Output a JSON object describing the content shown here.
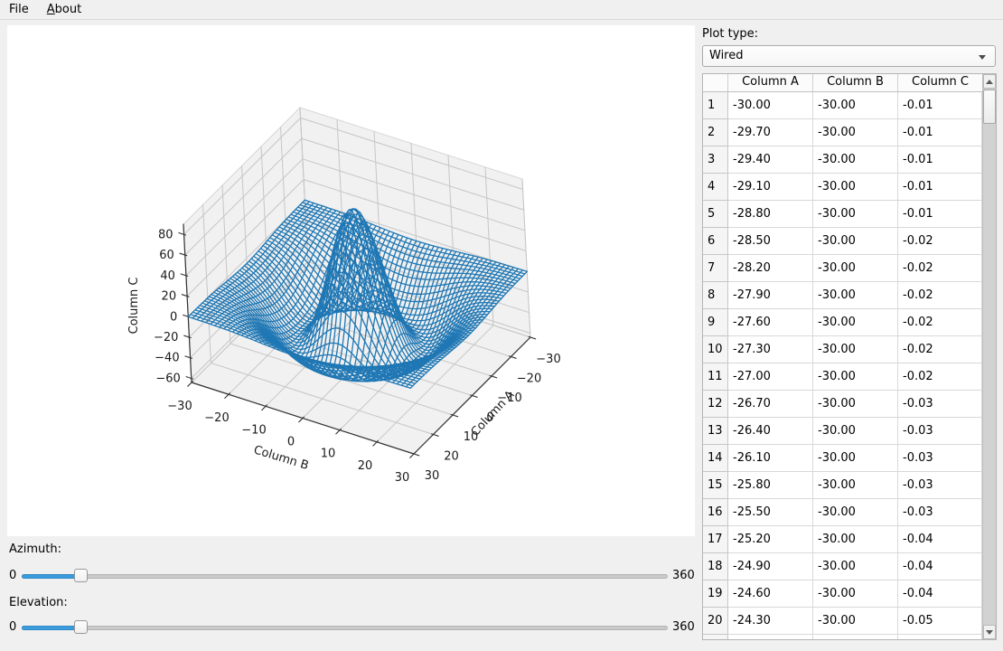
{
  "menu": {
    "items": [
      {
        "label": "File",
        "underline_index": -1
      },
      {
        "label": "About",
        "underline_index": 0
      }
    ]
  },
  "right_panel": {
    "plot_type_label": "Plot type:",
    "plot_type_value": "Wired"
  },
  "table": {
    "columns": [
      "Column A",
      "Column B",
      "Column C"
    ],
    "rows": [
      [
        "1",
        "-30.00",
        "-30.00",
        "-0.01"
      ],
      [
        "2",
        "-29.70",
        "-30.00",
        "-0.01"
      ],
      [
        "3",
        "-29.40",
        "-30.00",
        "-0.01"
      ],
      [
        "4",
        "-29.10",
        "-30.00",
        "-0.01"
      ],
      [
        "5",
        "-28.80",
        "-30.00",
        "-0.01"
      ],
      [
        "6",
        "-28.50",
        "-30.00",
        "-0.02"
      ],
      [
        "7",
        "-28.20",
        "-30.00",
        "-0.02"
      ],
      [
        "8",
        "-27.90",
        "-30.00",
        "-0.02"
      ],
      [
        "9",
        "-27.60",
        "-30.00",
        "-0.02"
      ],
      [
        "10",
        "-27.30",
        "-30.00",
        "-0.02"
      ],
      [
        "11",
        "-27.00",
        "-30.00",
        "-0.02"
      ],
      [
        "12",
        "-26.70",
        "-30.00",
        "-0.03"
      ],
      [
        "13",
        "-26.40",
        "-30.00",
        "-0.03"
      ],
      [
        "14",
        "-26.10",
        "-30.00",
        "-0.03"
      ],
      [
        "15",
        "-25.80",
        "-30.00",
        "-0.03"
      ],
      [
        "16",
        "-25.50",
        "-30.00",
        "-0.03"
      ],
      [
        "17",
        "-25.20",
        "-30.00",
        "-0.04"
      ],
      [
        "18",
        "-24.90",
        "-30.00",
        "-0.04"
      ],
      [
        "19",
        "-24.60",
        "-30.00",
        "-0.04"
      ],
      [
        "20",
        "-24.30",
        "-30.00",
        "-0.05"
      ]
    ]
  },
  "sliders": {
    "azimuth": {
      "label": "Azimuth:",
      "min": "0",
      "max": "360",
      "value": 30,
      "range": 360
    },
    "elevation": {
      "label": "Elevation:",
      "min": "0",
      "max": "360",
      "value": 30,
      "range": 360
    }
  },
  "chart_data": {
    "type": "wireframe-3d",
    "xlabel": "Column B",
    "ylabel": "Column A",
    "zlabel": "Column C",
    "x_ticks": [
      -30,
      -20,
      -10,
      0,
      10,
      20,
      30
    ],
    "y_ticks": [
      -30,
      -20,
      -10,
      0,
      10,
      20,
      30
    ],
    "z_ticks": [
      -60,
      -40,
      -20,
      0,
      20,
      40,
      60,
      80
    ],
    "x_range": [
      -30,
      30
    ],
    "y_range": [
      -30,
      30
    ],
    "z_range": [
      -64,
      90
    ],
    "surface_formula": "z = 83*(1 - r2/70)*exp(-r2/170), r2 = A^2 + B^2 (Ricker-style wavelet: central peak ~83, ring trough ~-49, flat ~0 at edges)",
    "surface_params": {
      "amplitude": 83,
      "ricker_scale": 70,
      "gauss_scale": 170
    },
    "grid_segments": 50,
    "wire_color": "#1f77b4",
    "pane_color": "#f1f1f1",
    "grid_color": "#c6c6c6",
    "axis_color": "#333333",
    "view": {
      "elevation_deg": 30,
      "azimuth_deg": -60
    }
  }
}
